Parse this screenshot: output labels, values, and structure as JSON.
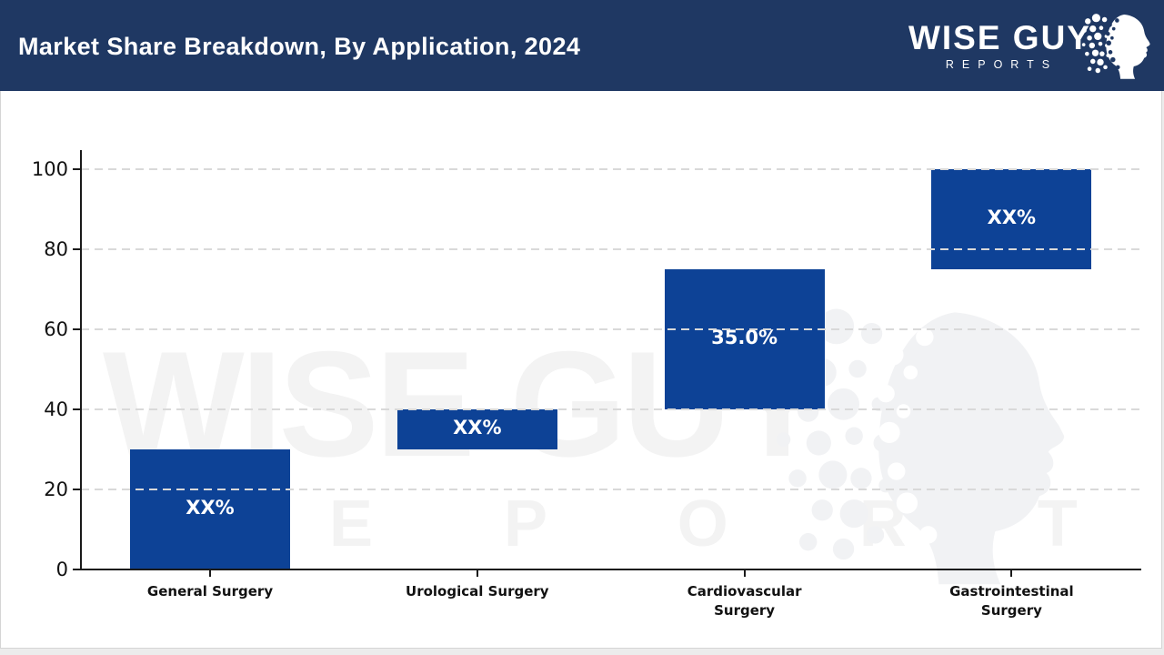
{
  "header": {
    "title": "Market Share Breakdown, By Application, 2024"
  },
  "logo": {
    "name_line": "WISE GUY",
    "sub_line": "REPORTS"
  },
  "watermark": {
    "name_line": "WISE GUY",
    "sub_line": "REPORTS"
  },
  "colors": {
    "header_bg": "#1f3863",
    "bar": "#0d4296",
    "bar_label": "#ffffff",
    "gridline": "#d9d9d9",
    "axis": "#1a1a1a",
    "watermark": "#f3f3f3"
  },
  "chart_data": {
    "type": "bar",
    "subtype": "waterfall",
    "title": "Market Share Breakdown, By Application, 2024",
    "categories": [
      "General Surgery",
      "Urological Surgery",
      "Cardiovascular Surgery",
      "Gastrointestinal Surgery"
    ],
    "series": [
      {
        "name": "Market Share",
        "segments": [
          {
            "category": "General Surgery",
            "start": 0,
            "end": 30,
            "value": 30,
            "label": "XX%"
          },
          {
            "category": "Urological Surgery",
            "start": 30,
            "end": 40,
            "value": 10,
            "label": "XX%"
          },
          {
            "category": "Cardiovascular Surgery",
            "start": 40,
            "end": 75,
            "value": 35,
            "label": "35.0%"
          },
          {
            "category": "Gastrointestinal Surgery",
            "start": 75,
            "end": 100,
            "value": 25,
            "label": "XX%"
          }
        ]
      }
    ],
    "xlabel": "",
    "ylabel": "",
    "ylim": [
      0,
      100
    ],
    "yticks": [
      0,
      20,
      40,
      60,
      80,
      100
    ],
    "grid": "horizontal dashed",
    "legend": "none"
  }
}
